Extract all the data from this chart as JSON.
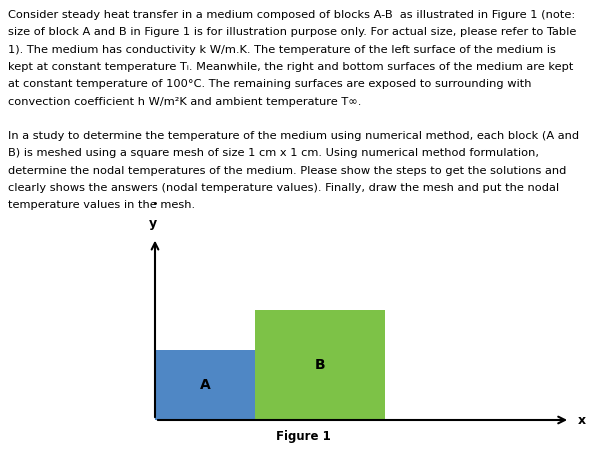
{
  "para1_lines": [
    "Consider steady heat transfer in a medium composed of blocks A-B  as illustrated in Figure 1 (note:",
    "size of block A and B in Figure 1 is for illustration purpose only. For actual size, please refer to Table",
    "1). The medium has conductivity k W/m.K. The temperature of the left surface of the medium is",
    "kept at constant temperature Tᵢ. Meanwhile, the right and bottom surfaces of the medium are kept",
    "at constant temperature of 100°C. The remaining surfaces are exposed to surrounding with",
    "convection coefficient h W/m²K and ambient temperature T∞."
  ],
  "para2_lines": [
    "In a study to determine the temperature of the medium using numerical method, each block (A and",
    "B) is meshed using a square mesh of size 1 cm x 1 cm. Using numerical method formulation,",
    "determine the nodal temperatures of the medium. Please show the steps to get the solutions and",
    "clearly shows the answers (nodal temperature values). Finally, draw the mesh and put the nodal",
    "temperature values in the mesh."
  ],
  "figure_label": "Figure 1",
  "block_A_color": "#4f87c5",
  "block_B_color": "#7dc247",
  "background_color": "#ffffff",
  "text_color": "#000000",
  "fontsize_text": 8.2,
  "fontsize_axlabel": 9,
  "fontsize_block_label": 10,
  "fontsize_figure": 8.5
}
